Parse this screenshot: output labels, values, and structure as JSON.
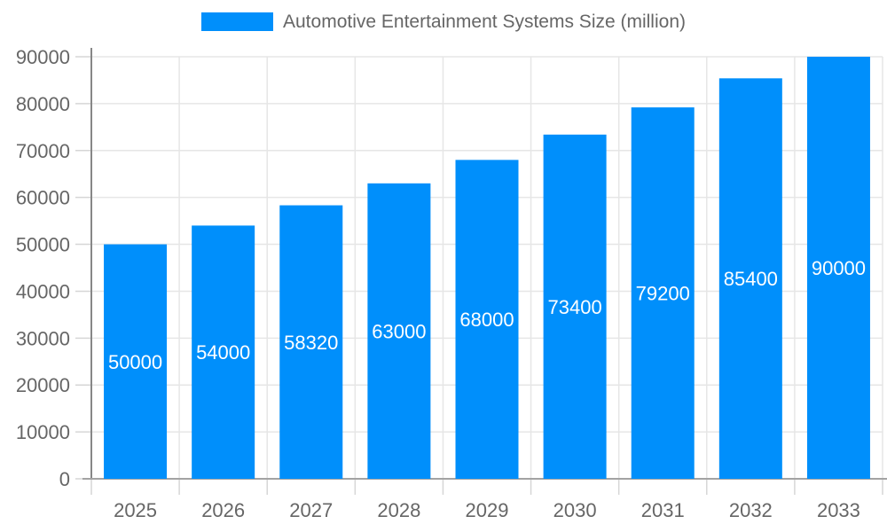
{
  "chart_data": {
    "type": "bar",
    "title": "Automotive Entertainment Systems Size (million)",
    "series_name": "Automotive Entertainment Systems Size (million)",
    "categories": [
      "2025",
      "2026",
      "2027",
      "2028",
      "2029",
      "2030",
      "2031",
      "2032",
      "2033"
    ],
    "values": [
      50000,
      54000,
      58320,
      63000,
      68000,
      73400,
      79200,
      85400,
      90000
    ],
    "data_labels": [
      "50000",
      "54000",
      "58320",
      "63000",
      "68000",
      "73400",
      "79200",
      "85400",
      "90000"
    ],
    "yticks": [
      0,
      10000,
      20000,
      30000,
      40000,
      50000,
      60000,
      70000,
      80000,
      90000
    ],
    "ylim": [
      0,
      90000
    ],
    "xlabel": "",
    "ylabel": "",
    "grid": true,
    "legend_position": "top",
    "colors": {
      "bar": "#008FFB",
      "bar_label": "#ffffff",
      "axis_text": "#666666",
      "gridline": "#e6e6e6",
      "tick_mark": "#d6d6d6",
      "y_axis_border": "#878787",
      "x_axis_border": "#a3a3a3",
      "background": "#ffffff"
    }
  }
}
